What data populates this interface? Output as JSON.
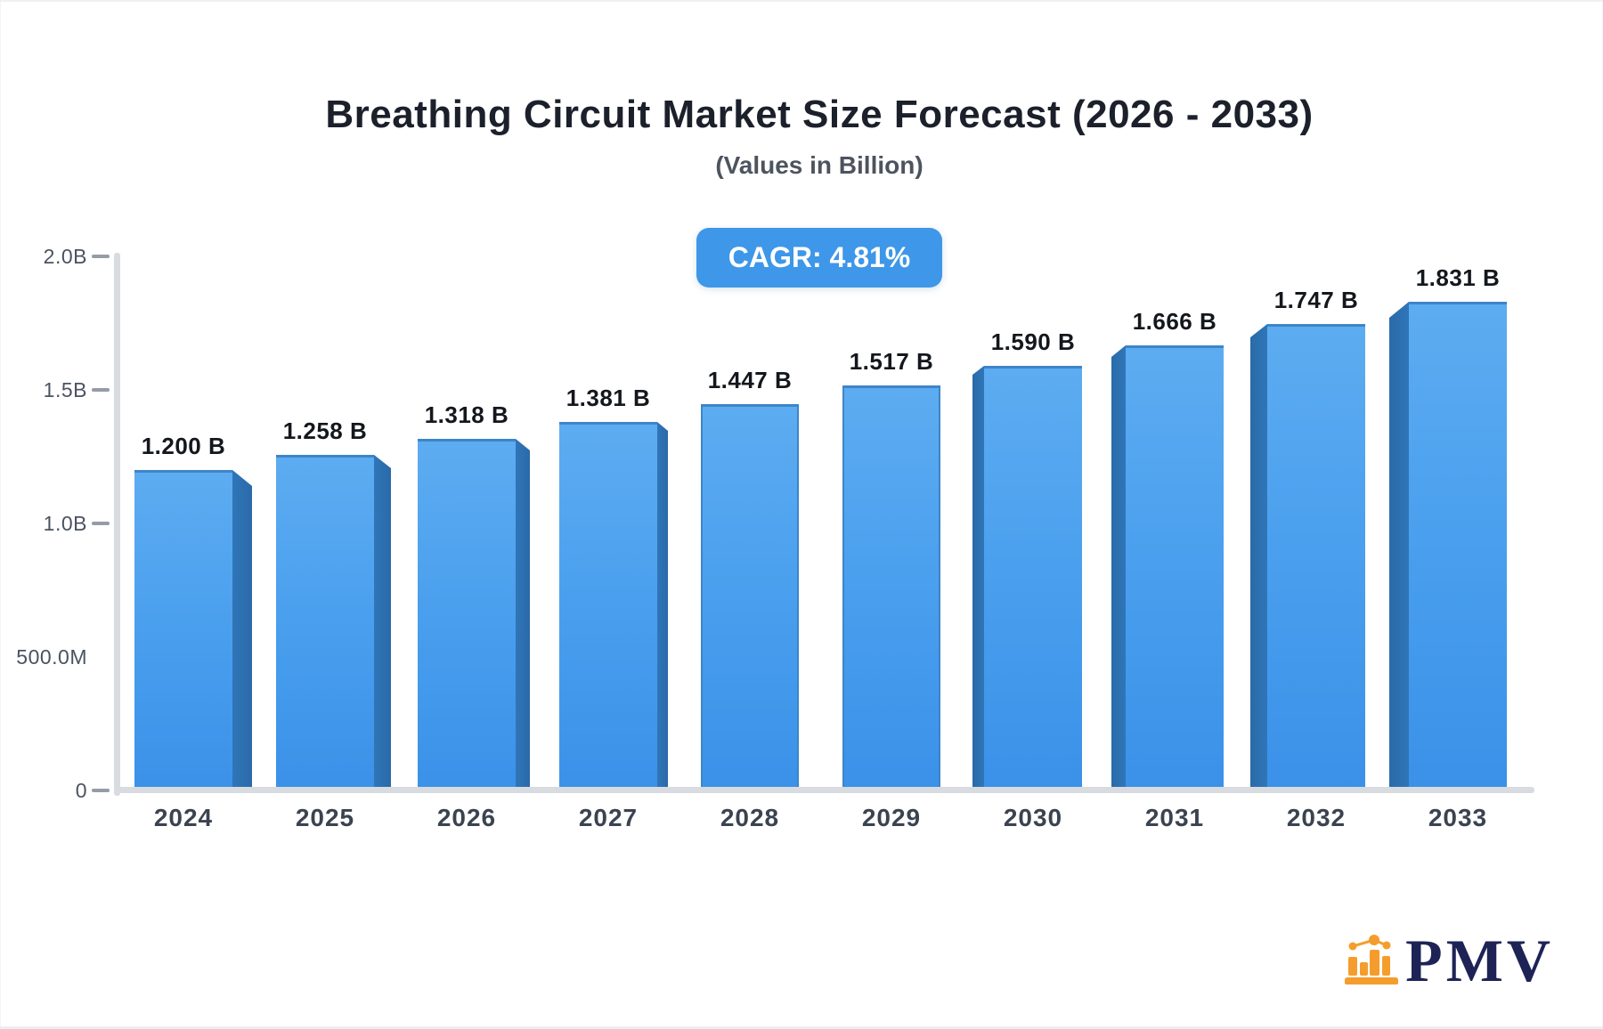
{
  "page": {
    "title": "Breathing Circuit Market Size Forecast (2026 - 2033)",
    "subtitle": "(Values in Billion)",
    "cagr_badge": "CAGR: 4.81%",
    "brand": {
      "name": "PMV",
      "icon": "bar-chart-growth-icon"
    }
  },
  "colors": {
    "badge_bg": "#3e97e8",
    "bar_face_top": "#5dacf1",
    "bar_face_bottom": "#3a91e8",
    "bar_side": "#2e74b5",
    "bar_top_stroke": "#3e85c8",
    "axis_line": "#d8dbe0",
    "value_label_text": "#14171c",
    "axis_label_text": "#4a5360",
    "brand_orange": "#f59d2c",
    "brand_navy": "#1e2356"
  },
  "chart_data": {
    "type": "bar",
    "style": "3d-perspective-bars",
    "title": "Breathing Circuit Market Size Forecast (2026 - 2033)",
    "subtitle": "(Values in Billion)",
    "annotation": "CAGR: 4.81%",
    "categories": [
      "2024",
      "2025",
      "2026",
      "2027",
      "2028",
      "2029",
      "2030",
      "2031",
      "2032",
      "2033"
    ],
    "values": [
      1.2,
      1.258,
      1.318,
      1.381,
      1.447,
      1.517,
      1.59,
      1.666,
      1.747,
      1.831
    ],
    "unit": "Billion",
    "bar_labels": [
      "1.200 B",
      "1.258 B",
      "1.318 B",
      "1.381 B",
      "1.447 B",
      "1.517 B",
      "1.590 B",
      "1.666 B",
      "1.747 B",
      "1.831 B"
    ],
    "xlabel": "",
    "ylabel": "",
    "ylim": [
      0,
      2.0
    ],
    "grid": false,
    "legend": false,
    "y_ticks": [
      {
        "label": "2.0B",
        "value": 2.0,
        "dash": true
      },
      {
        "label": "1.5B",
        "value": 1.5,
        "dash": true
      },
      {
        "label": "1.0B",
        "value": 1.0,
        "dash": true
      },
      {
        "label": "500.0M",
        "value": 0.5,
        "dash": false
      },
      {
        "label": "0",
        "value": 0.0,
        "dash": true
      }
    ]
  }
}
